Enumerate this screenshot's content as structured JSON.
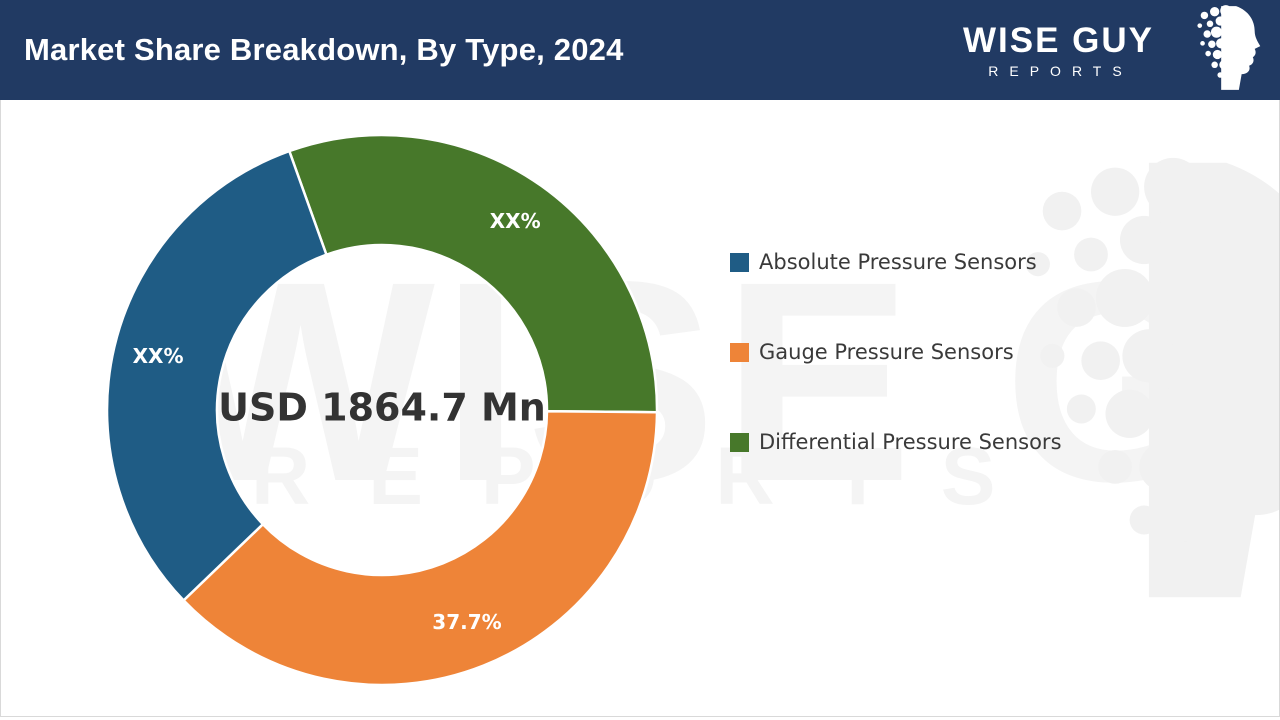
{
  "header": {
    "title": "Market Share Breakdown, By Type, 2024",
    "logo": {
      "line1": "WISE GUY",
      "line2": "REPORTS"
    }
  },
  "watermark": {
    "line1": "WISE GUY",
    "line2": "REPORTS"
  },
  "chart_data": {
    "type": "pie",
    "subtype": "donut",
    "title": "Market Share Breakdown, By Type, 2024",
    "center_label": "USD 1864.7 Mn",
    "inner_radius_ratio": 0.6,
    "start_angle_deg_clockwise_from_top": -19.7,
    "legend_position": "right",
    "segments": [
      {
        "name": "Differential Pressure Sensors",
        "value": 30.6,
        "display_label": "XX%",
        "color": "#47782A"
      },
      {
        "name": "Gauge Pressure Sensors",
        "value": 37.7,
        "display_label": "37.7%",
        "color": "#EE8438"
      },
      {
        "name": "Absolute Pressure Sensors",
        "value": 31.7,
        "display_label": "XX%",
        "color": "#1F5C85"
      }
    ],
    "legend": [
      {
        "label": "Absolute Pressure Sensors",
        "color": "#1F5C85"
      },
      {
        "label": "Gauge Pressure Sensors",
        "color": "#EE8438"
      },
      {
        "label": "Differential Pressure Sensors",
        "color": "#47782A"
      }
    ]
  },
  "colors": {
    "header_bg": "#213A63",
    "title_text": "#FFFFFF",
    "center_text": "#333333",
    "slice_label_text": "#FFFFFF",
    "legend_text": "#3A3A3A",
    "watermark": "#F4F4F4",
    "card_border": "#D9D9D9"
  }
}
